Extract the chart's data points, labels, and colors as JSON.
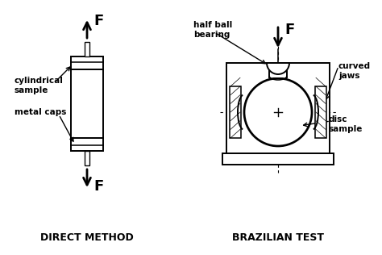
{
  "bg_color": "#ffffff",
  "line_color": "black",
  "text_color": "black",
  "title_left": "DIRECT METHOD",
  "title_right": "BRAZILIAN TEST",
  "label_cyl_sample": "cylindrical\nsample",
  "label_metal_caps": "metal caps",
  "label_half_ball": "half ball\nbearing",
  "label_curved_jaws": "curved\njaws",
  "label_disc_sample": "disc\nsample",
  "label_F": "F",
  "figsize": [
    4.74,
    3.16
  ],
  "dpi": 100
}
